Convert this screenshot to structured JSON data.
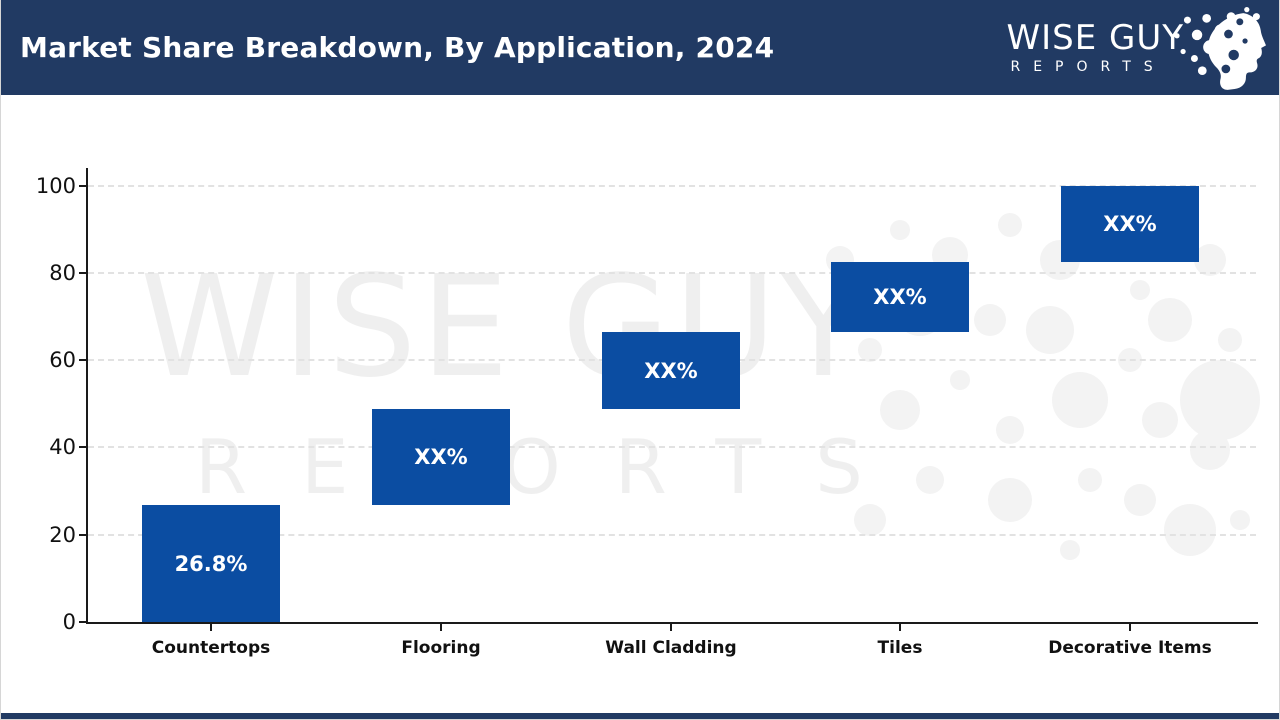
{
  "header": {
    "title": "Market Share Breakdown, By Application, 2024",
    "logo": {
      "line1": "WISE GUY",
      "line2": "REPORTS"
    }
  },
  "watermark": {
    "line1": "WISE GUY",
    "line2": "REPORTS"
  },
  "colors": {
    "header_bg": "#213A63",
    "bar": "#0B4DA2",
    "grid": "#E2E2E2",
    "axis": "#1A1A1A",
    "bar_label": "#FFFFFF",
    "watermark": "#F0F0F0"
  },
  "chart_data": {
    "type": "bar",
    "subtype": "waterfall",
    "title": "Market Share Breakdown, By Application, 2024",
    "categories": [
      "Countertops",
      "Flooring",
      "Wall Cladding",
      "Tiles",
      "Decorative Items"
    ],
    "segments": [
      {
        "category": "Countertops",
        "start": 0,
        "end": 26.8,
        "label": "26.8%"
      },
      {
        "category": "Flooring",
        "start": 26.8,
        "end": 48.7,
        "label": "XX%"
      },
      {
        "category": "Wall Cladding",
        "start": 48.7,
        "end": 66.5,
        "label": "XX%"
      },
      {
        "category": "Tiles",
        "start": 66.5,
        "end": 82.4,
        "label": "XX%"
      },
      {
        "category": "Decorative Items",
        "start": 82.4,
        "end": 100,
        "label": "XX%"
      }
    ],
    "yticks": [
      0,
      20,
      40,
      60,
      80,
      100
    ],
    "ylim": [
      0,
      104
    ],
    "xlabel": "",
    "ylabel": "",
    "grid": "horizontal-dashed",
    "legend": "none"
  }
}
